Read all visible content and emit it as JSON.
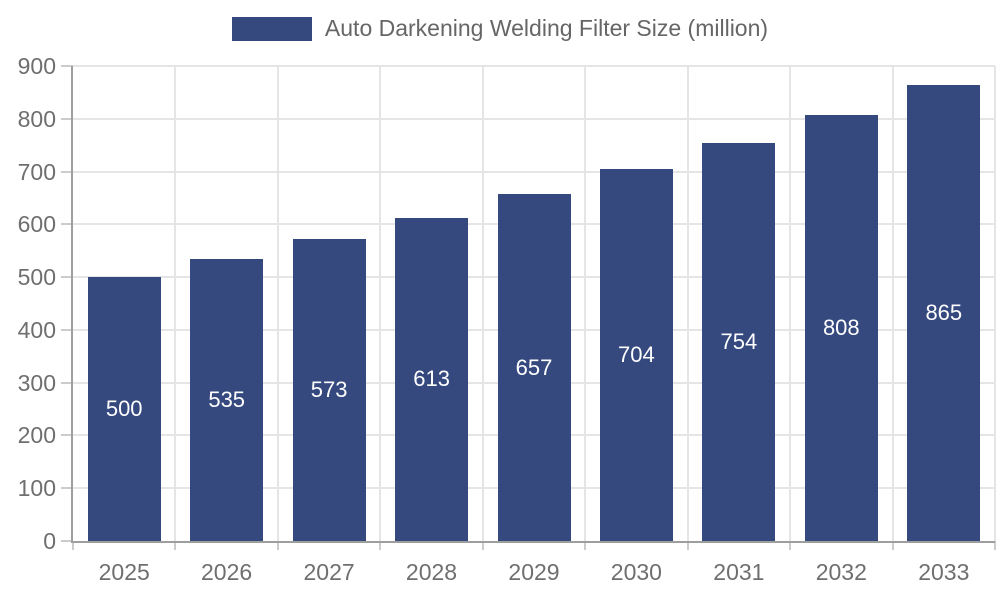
{
  "legend": {
    "label": "Auto Darkening Welding Filter Size (million)"
  },
  "colors": {
    "bar": "#35497f",
    "grid": "#e5e5e5",
    "axis": "#9e9e9e",
    "tick": "#cccccc",
    "label": "#6f6f6f",
    "value_label": "#ffffff",
    "legend_text": "#666666"
  },
  "chart_data": {
    "type": "bar",
    "categories": [
      "2025",
      "2026",
      "2027",
      "2028",
      "2029",
      "2030",
      "2031",
      "2032",
      "2033"
    ],
    "values": [
      500,
      535,
      573,
      613,
      657,
      704,
      754,
      808,
      865
    ],
    "title": "Auto Darkening Welding Filter Size (million)",
    "xlabel": "",
    "ylabel": "",
    "ylim": [
      0,
      900
    ],
    "ytick_step": 100,
    "yticks": [
      "0",
      "100",
      "200",
      "300",
      "400",
      "500",
      "600",
      "700",
      "800",
      "900"
    ],
    "grid": true,
    "legend_position": "top-center",
    "value_label_style": "white, centered inside bars"
  }
}
